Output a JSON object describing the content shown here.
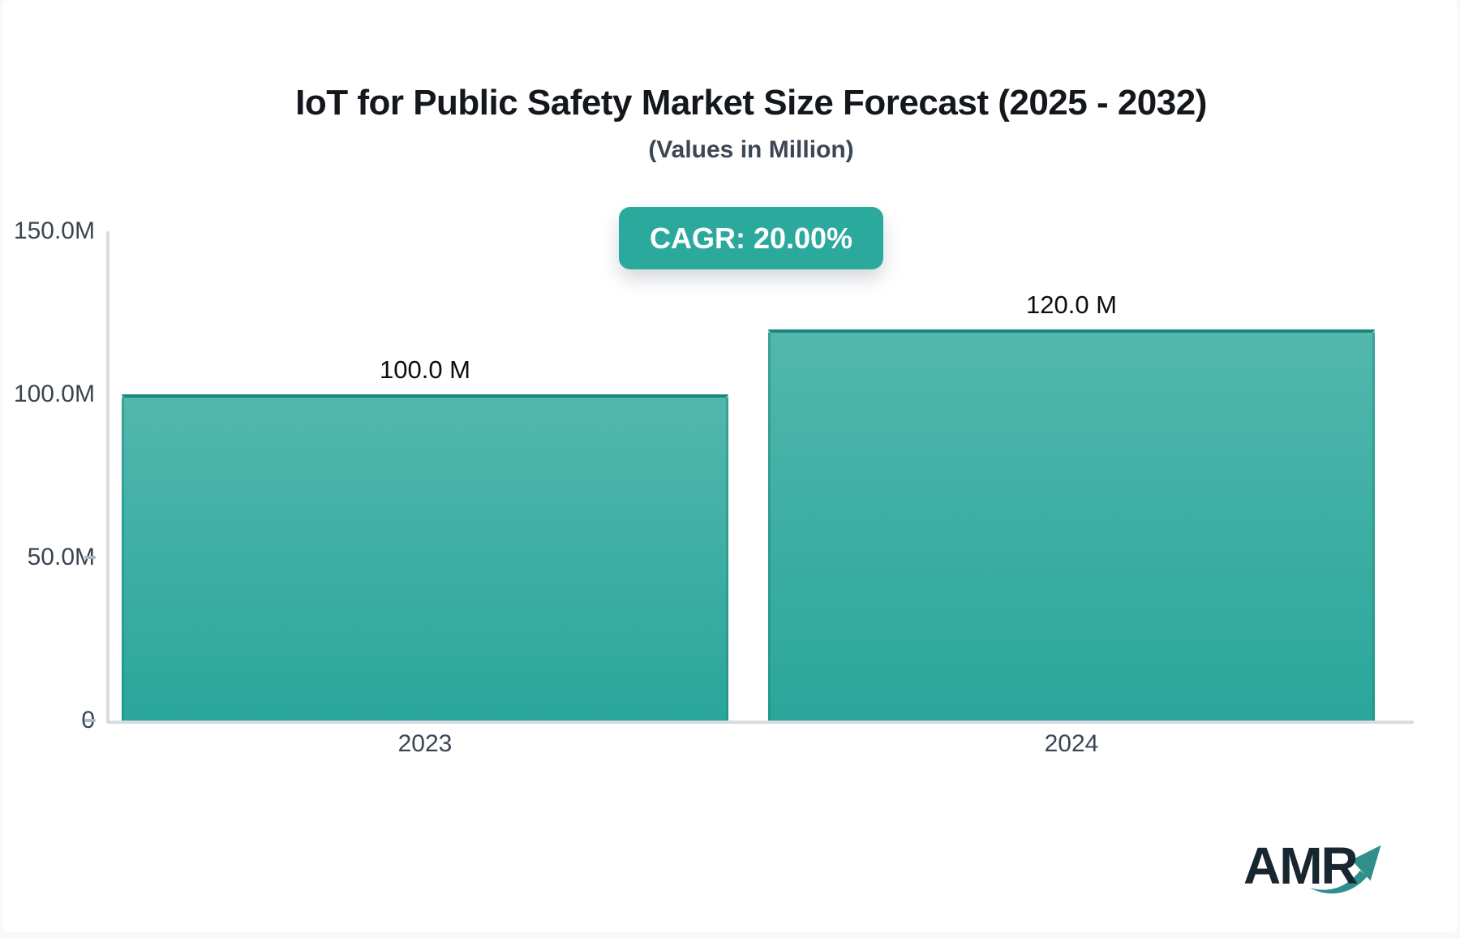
{
  "chart_data": {
    "type": "bar",
    "title": "IoT for Public Safety Market Size Forecast (2025 - 2032)",
    "subtitle": "(Values in Million)",
    "badge": "CAGR: 20.00%",
    "categories": [
      "2023",
      "2024"
    ],
    "values": [
      100,
      120
    ],
    "value_labels": [
      "100.0 M",
      "120.0 M"
    ],
    "unit": "Million",
    "ylim": [
      0,
      150
    ],
    "yticks": [
      {
        "value": 150,
        "label": "150.0M",
        "dash": false
      },
      {
        "value": 100,
        "label": "100.0M",
        "dash": false
      },
      {
        "value": 50,
        "label": "50.0M",
        "dash": true
      },
      {
        "value": 0,
        "label": "0",
        "dash": true
      }
    ],
    "grid": false,
    "legend": "none"
  },
  "branding": {
    "logo_text": "AMR"
  },
  "colors": {
    "badge_bg": "#2BA99D",
    "bar_top": "#52B7AD",
    "bar_bottom": "#2AA69A",
    "bar_stroke": "#1A877D",
    "axis_line": "#D8DBE0",
    "tick_dash": "#AFB6BE",
    "title_text": "#14181D",
    "subtitle_text": "#3D4754",
    "axis_text": "#3B4552",
    "value_text": "#0B0E12",
    "logo_navy": "#182630",
    "logo_arrow": "#2F8F8B"
  }
}
